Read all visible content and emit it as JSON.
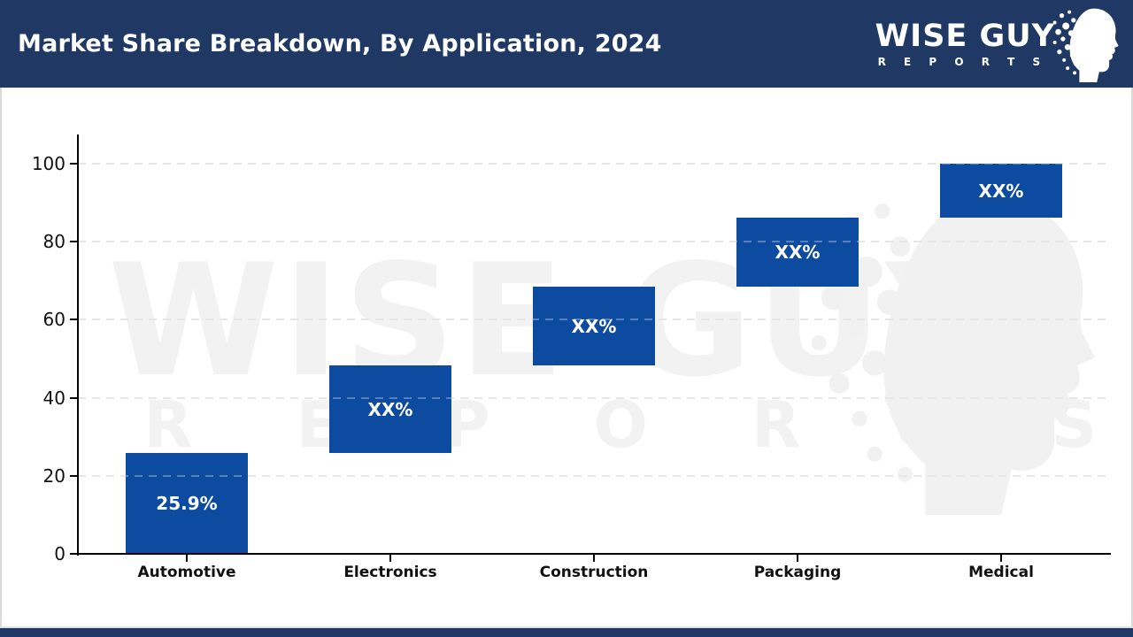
{
  "header": {
    "title": "Market Share Breakdown, By Application, 2024",
    "logo": {
      "wordmark": "WISE GUY",
      "subtext": "R E P O R T S"
    }
  },
  "watermark": {
    "wordmark": "WISE GUY",
    "subtext": "R E P O R T S"
  },
  "chart_data": {
    "type": "bar",
    "subtype": "floating-waterfall",
    "title": "Market Share Breakdown, By Application, 2024",
    "categories": [
      "Automotive",
      "Electronics",
      "Construction",
      "Packaging",
      "Medical"
    ],
    "segments": [
      {
        "category": "Automotive",
        "start": 0,
        "end": 25.9,
        "label": "25.9%"
      },
      {
        "category": "Electronics",
        "start": 25.9,
        "end": 48.2,
        "label": "XX%"
      },
      {
        "category": "Construction",
        "start": 48.2,
        "end": 68.4,
        "label": "XX%"
      },
      {
        "category": "Packaging",
        "start": 68.4,
        "end": 86.1,
        "label": "XX%"
      },
      {
        "category": "Medical",
        "start": 86.1,
        "end": 100,
        "label": "XX%"
      }
    ],
    "yticks": [
      0,
      20,
      40,
      60,
      80,
      100
    ],
    "ylim": [
      0,
      100
    ],
    "xlabel": "",
    "ylabel": "",
    "grid": "dashed-horizontal",
    "legend": "none",
    "bar_color": "#0d4ba1",
    "bar_label_color": "#ffffff"
  },
  "colors": {
    "header_bg": "#1f3864",
    "footer_bg": "#1f3864",
    "bar": "#0d4ba1",
    "gridline": "#dcdcdc",
    "axis": "#000000",
    "watermark": "#f2f2f2",
    "frame_border": "#d9d9d9",
    "text": "#111111"
  }
}
